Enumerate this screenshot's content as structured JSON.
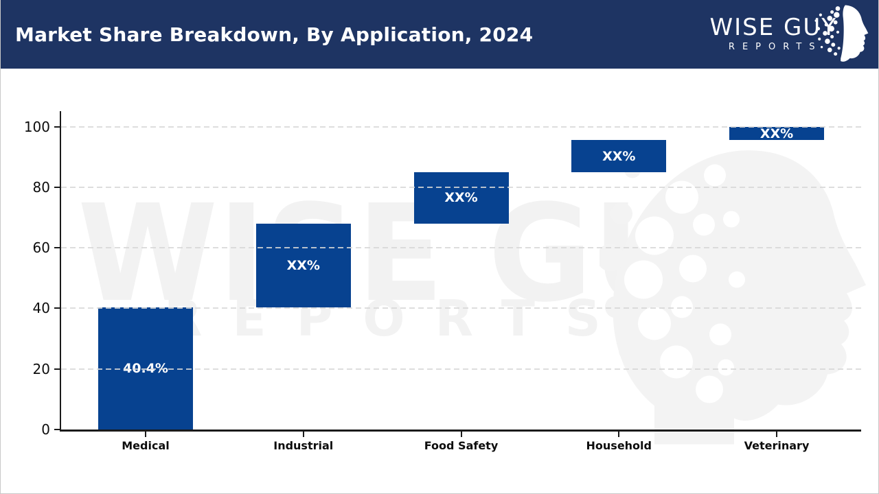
{
  "header": {
    "title": "Market Share Breakdown, By Application, 2024",
    "logo": {
      "line1": "WISE GUY",
      "line2": "REPORTS"
    }
  },
  "watermark": {
    "line1": "WISE GUY",
    "line2": "REPORTS"
  },
  "colors": {
    "header_bg": "#1e3463",
    "bar_blue": "#074290",
    "grid_gray": "#e0e0e0",
    "watermark_gray": "#f2f2f2"
  },
  "chart_data": {
    "type": "bar",
    "subtype": "waterfall",
    "title": "Market Share Breakdown, By Application, 2024",
    "categories": [
      "Medical",
      "Industrial",
      "Food Safety",
      "Household",
      "Veterinary"
    ],
    "segments": [
      {
        "category": "Medical",
        "start": 0,
        "end": 40.4,
        "label": "40.4%"
      },
      {
        "category": "Industrial",
        "start": 40.4,
        "end": 68,
        "label": "XX%"
      },
      {
        "category": "Food Safety",
        "start": 68,
        "end": 85,
        "label": "XX%"
      },
      {
        "category": "Household",
        "start": 85,
        "end": 95.5,
        "label": "XX%"
      },
      {
        "category": "Veterinary",
        "start": 95.5,
        "end": 100,
        "label": "XX%"
      }
    ],
    "yticks": [
      0,
      20,
      40,
      60,
      80,
      100
    ],
    "ylim": [
      0,
      105
    ],
    "xlabel": "",
    "ylabel": "",
    "grid": "horizontal-dashed",
    "legend": "none",
    "bar_color": "#074290"
  }
}
